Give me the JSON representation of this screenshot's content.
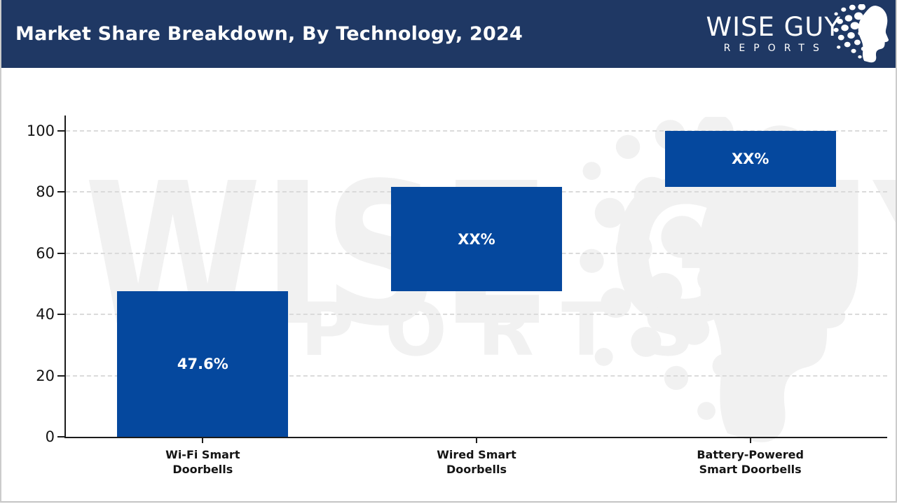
{
  "header": {
    "title": "Market Share Breakdown, By Technology, 2024",
    "logo": {
      "line1": "WISE GUY",
      "line2": "REPORTS"
    }
  },
  "watermark": {
    "line1": "WISE GUY",
    "line2": "REPORTS"
  },
  "colors": {
    "header_bg": "#1f3864",
    "bar": "#05489e",
    "grid": "#dadada",
    "axis": "#1c1c1c",
    "bar_label": "#ffffff",
    "watermark": "#f1f1f1"
  },
  "chart_data": {
    "type": "bar",
    "subtype": "waterfall-breakdown",
    "title": "Market Share Breakdown, By Technology, 2024",
    "categories": [
      "Wi-Fi Smart Doorbells",
      "Wired Smart Doorbells",
      "Battery-Powered Smart Doorbells"
    ],
    "categories_lines": [
      [
        "Wi-Fi Smart",
        "Doorbells"
      ],
      [
        "Wired Smart",
        "Doorbells"
      ],
      [
        "Battery-Powered",
        "Smart Doorbells"
      ]
    ],
    "segments": [
      {
        "category": "Wi-Fi Smart Doorbells",
        "start": 0,
        "end": 47.6,
        "label": "47.6%"
      },
      {
        "category": "Wired Smart Doorbells",
        "start": 47.6,
        "end": 81.6,
        "label": "XX%"
      },
      {
        "category": "Battery-Powered Smart Doorbells",
        "start": 81.6,
        "end": 100,
        "label": "XX%"
      }
    ],
    "ylim": [
      0,
      100
    ],
    "yticks": [
      0,
      20,
      40,
      60,
      80,
      100
    ],
    "xlabel": "",
    "ylabel": "",
    "grid": "horizontal-dashed",
    "legend": "none"
  }
}
